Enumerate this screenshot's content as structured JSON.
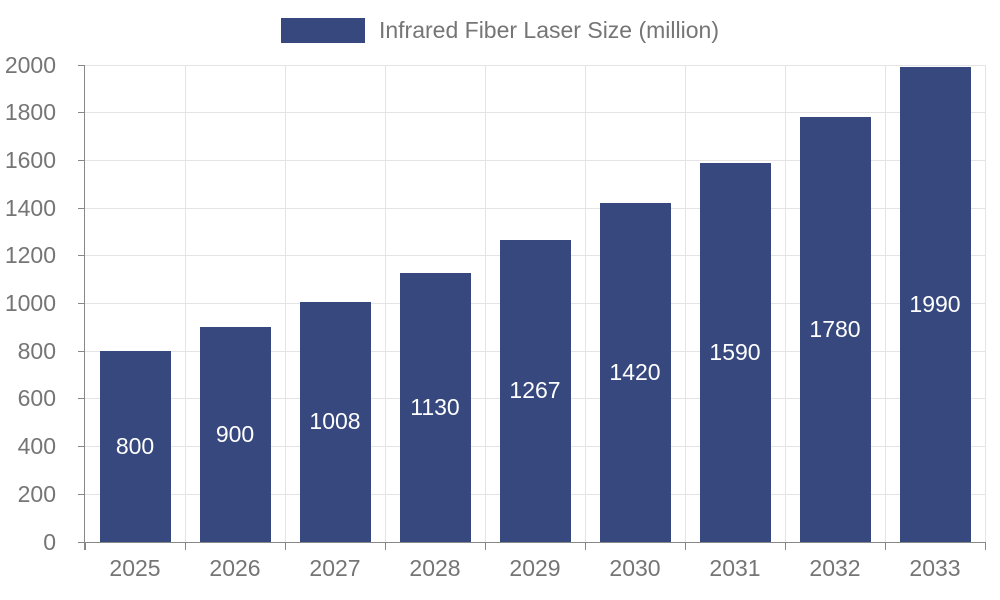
{
  "chart_data": {
    "type": "bar",
    "title": "",
    "legend": "Infrared Fiber Laser Size (million)",
    "categories": [
      "2025",
      "2026",
      "2027",
      "2028",
      "2029",
      "2030",
      "2031",
      "2032",
      "2033"
    ],
    "values": [
      800,
      900,
      1008,
      1130,
      1267,
      1420,
      1590,
      1780,
      1990
    ],
    "ylim": [
      0,
      2000
    ],
    "yticks": [
      0,
      200,
      400,
      600,
      800,
      1000,
      1200,
      1400,
      1600,
      1800,
      2000
    ],
    "grid": true,
    "legend_position": "top-center",
    "value_labels": "inside-center",
    "colors": {
      "bar": "#36487E",
      "bar_value_label": "#ffffff",
      "gridline": "#e4e4e4",
      "axis_line": "#888888",
      "tick_label": "#757575",
      "legend_text": "#757575"
    }
  }
}
